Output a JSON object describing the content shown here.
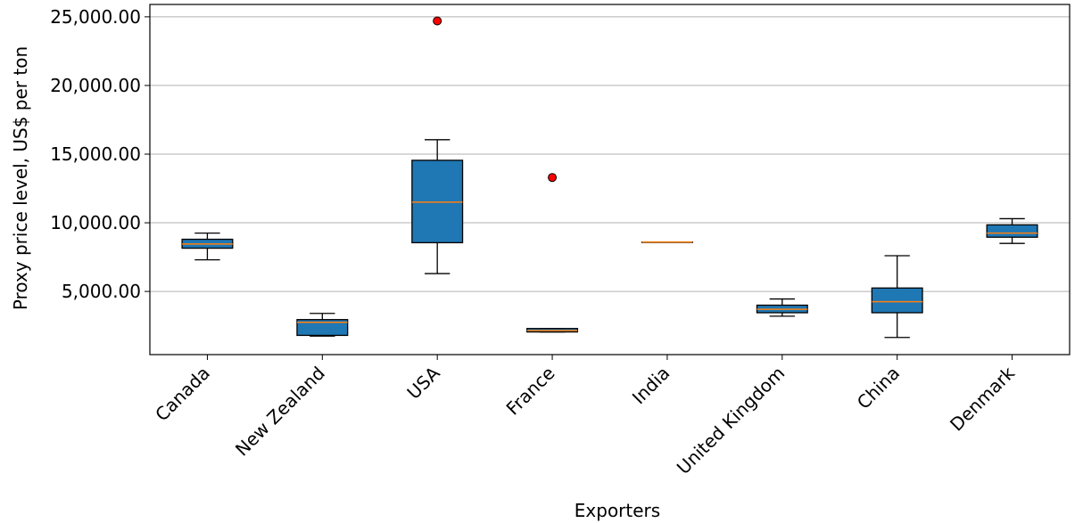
{
  "chart_data": {
    "type": "box",
    "xlabel": "Exporters",
    "ylabel": "Proxy price level, US$ per ton",
    "ylim": [
      400,
      25900
    ],
    "yticks": [
      5000,
      10000,
      15000,
      20000,
      25000
    ],
    "ytick_labels": [
      "5,000.00",
      "10,000.00",
      "15,000.00",
      "20,000.00",
      "25,000.00"
    ],
    "grid": "y",
    "box_color": "#1f77b4",
    "median_color": "#ff7f0e",
    "outlier_color": "#ff0000",
    "categories": [
      "Canada",
      "New Zealand",
      "USA",
      "France",
      "India",
      "United Kingdom",
      "China",
      "Denmark"
    ],
    "boxes": [
      {
        "whisker_low": 7300,
        "q1": 8150,
        "median": 8450,
        "q3": 8800,
        "whisker_high": 9250,
        "outliers": []
      },
      {
        "whisker_low": 1750,
        "q1": 1800,
        "median": 2750,
        "q3": 2950,
        "whisker_high": 3400,
        "outliers": []
      },
      {
        "whisker_low": 6300,
        "q1": 8550,
        "median": 11500,
        "q3": 14550,
        "whisker_high": 16050,
        "outliers": [
          24700
        ]
      },
      {
        "whisker_low": 2050,
        "q1": 2050,
        "median": 2150,
        "q3": 2300,
        "whisker_high": 2300,
        "outliers": [
          13300
        ]
      },
      {
        "whisker_low": 8600,
        "q1": 8600,
        "median": 8600,
        "q3": 8600,
        "whisker_high": 8600,
        "outliers": []
      },
      {
        "whisker_low": 3200,
        "q1": 3450,
        "median": 3700,
        "q3": 4000,
        "whisker_high": 4450,
        "outliers": []
      },
      {
        "whisker_low": 1650,
        "q1": 3450,
        "median": 4250,
        "q3": 5250,
        "whisker_high": 7600,
        "outliers": []
      },
      {
        "whisker_low": 8500,
        "q1": 8950,
        "median": 9250,
        "q3": 9850,
        "whisker_high": 10300,
        "outliers": []
      }
    ]
  }
}
